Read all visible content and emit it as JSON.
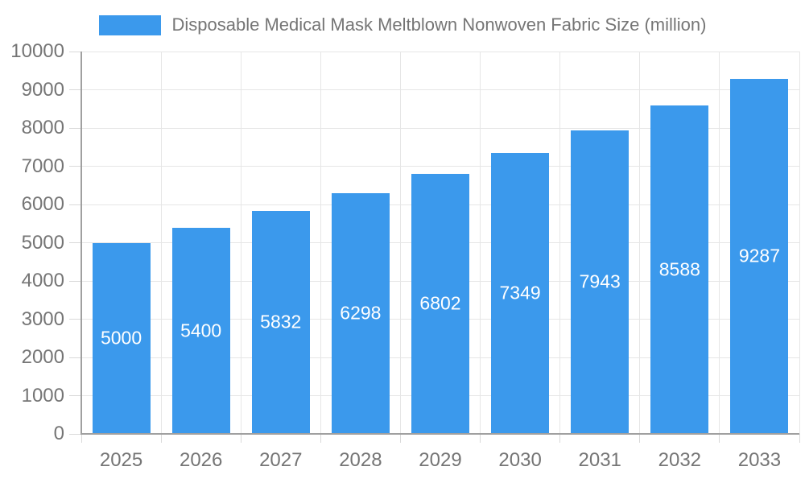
{
  "chart_data": {
    "type": "bar",
    "title": "Disposable Medical Mask Meltblown Nonwoven Fabric Size (million)",
    "categories": [
      "2025",
      "2026",
      "2027",
      "2028",
      "2029",
      "2030",
      "2031",
      "2032",
      "2033"
    ],
    "series": [
      {
        "name": "Disposable Medical Mask Meltblown Nonwoven Fabric Size (million)",
        "values": [
          5000,
          5400,
          5832,
          6298,
          6802,
          7349,
          7943,
          8588,
          9287
        ]
      }
    ],
    "xlabel": "",
    "ylabel": "",
    "ylim": [
      0,
      10000
    ],
    "ytick_step": 1000,
    "yticks": [
      0,
      1000,
      2000,
      3000,
      4000,
      5000,
      6000,
      7000,
      8000,
      9000,
      10000
    ],
    "legend": {
      "position": "top",
      "label": "Disposable Medical Mask Meltblown Nonwoven Fabric Size (million)"
    },
    "grid": true,
    "value_labels": {
      "visible": true,
      "position": "center"
    },
    "colors": {
      "bar": "#3b99ec",
      "value_label_text": "#ffffff",
      "axis_text": "#757575",
      "legend_text": "#757575",
      "gridline": "#e6e6e6",
      "tick_mark": "#d9d9d9",
      "axis_line": "#a0a0a0",
      "background": "#ffffff"
    }
  }
}
